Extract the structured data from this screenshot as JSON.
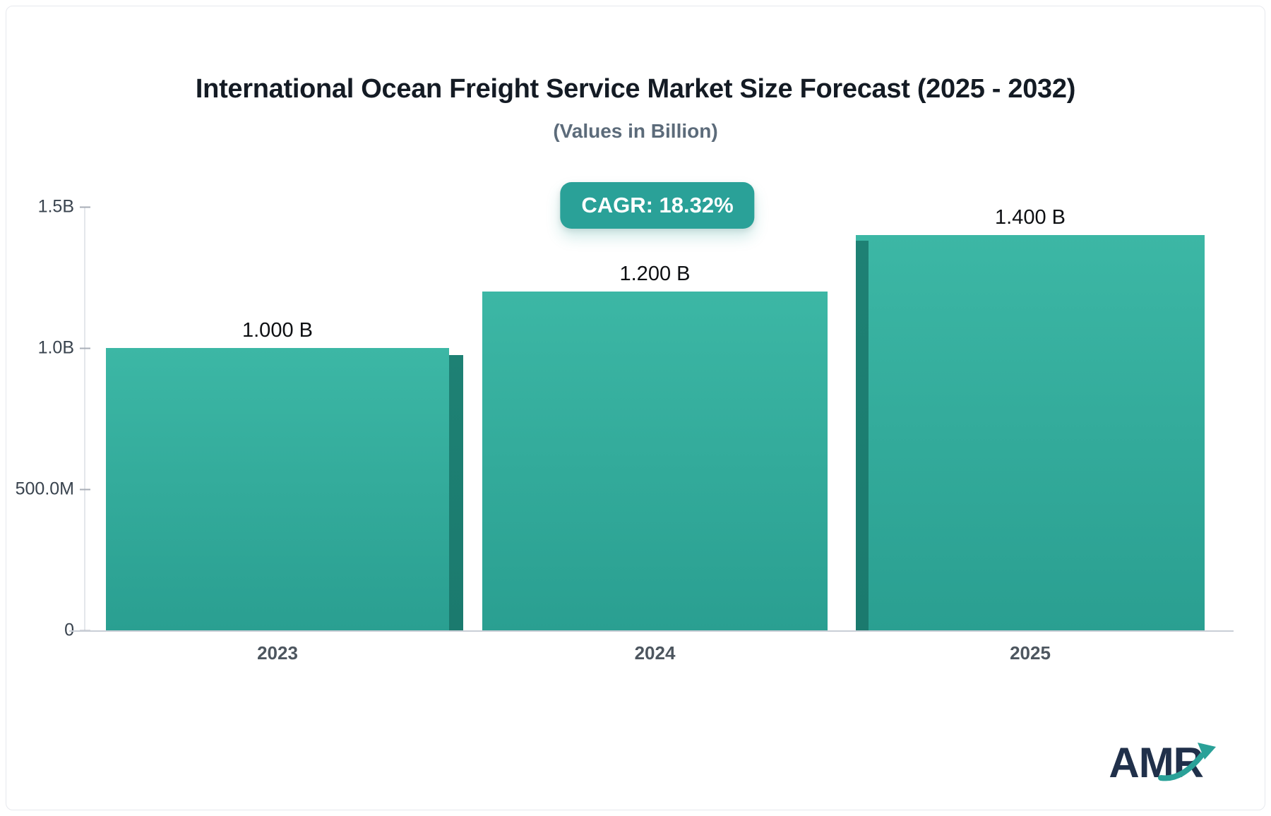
{
  "theme": {
    "accent": "#2aa198",
    "bar-top": "#3cb7a5",
    "bar-bottom": "#2a9f91",
    "bar-side": "#1e8174",
    "title-color": "#141b24",
    "subtitle-color": "#5c6b7a",
    "axis-color": "#39434e",
    "xlabel-color": "#4d565f",
    "line-color": "#c9ced6",
    "logo-color": "#20304a",
    "badge-text": "#ffffff"
  },
  "chart_data": {
    "type": "bar",
    "title": "International Ocean Freight Service Market Size Forecast (2025 - 2032)",
    "subtitle": "(Values in Billion)",
    "annotation": "CAGR: 18.32%",
    "unit": "Billion",
    "categories": [
      "2023",
      "2024",
      "2025"
    ],
    "values": [
      1.0,
      1.2,
      1.4
    ],
    "data_labels": [
      "1.000 B",
      "1.200 B",
      "1.400 B"
    ],
    "ylim": [
      0,
      1.5
    ],
    "y_tick_labels": [
      "1.5B",
      "1.0B",
      "500.0M",
      "0"
    ],
    "xlabel": "",
    "ylabel": "",
    "grid": false,
    "legend": false
  },
  "logo": {
    "text": "AMR"
  }
}
